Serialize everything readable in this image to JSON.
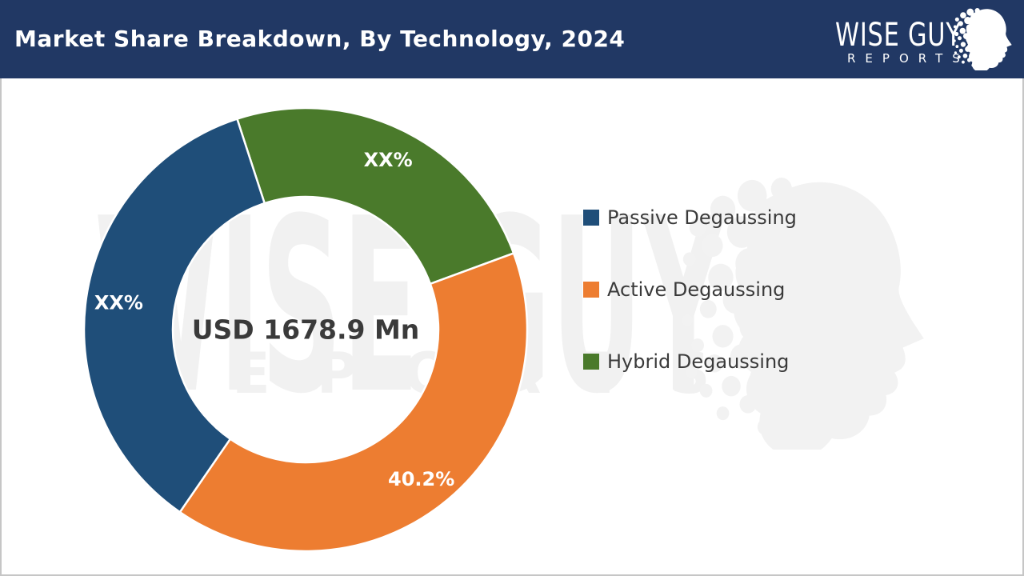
{
  "header": {
    "title": "Market Share Breakdown, By Technology, 2024",
    "bg_color": "#213864",
    "logo": {
      "line1": "WISE GUY",
      "line2": "REPORTS"
    }
  },
  "watermark": {
    "line1": "WISE GUY",
    "line2": "REPORTS"
  },
  "chart_data": {
    "type": "pie",
    "subtype": "donut",
    "title": "Market Share Breakdown, By Technology, 2024",
    "center_label": "USD 1678.9 Mn",
    "start_angle_deg": -18,
    "direction": "clockwise",
    "outer_radius": 277,
    "inner_radius": 166,
    "label_radius": 236,
    "label_color": "#FFFFFF",
    "center_label_color": "#3A3A3A",
    "legend_position": "right",
    "slices": [
      {
        "name": "Hybrid Degaussing",
        "share_pct": 24.4,
        "label": "XX%",
        "color": "#4A7A2B"
      },
      {
        "name": "Active Degaussing",
        "share_pct": 40.2,
        "label": "40.2%",
        "color": "#ED7D31"
      },
      {
        "name": "Passive Degaussing",
        "share_pct": 35.4,
        "label": "XX%",
        "color": "#1F4E79"
      }
    ],
    "legend": [
      {
        "label": "Passive Degaussing",
        "color": "#1F4E79"
      },
      {
        "label": "Active Degaussing",
        "color": "#ED7D31"
      },
      {
        "label": "Hybrid Degaussing",
        "color": "#4A7A2B"
      }
    ]
  }
}
